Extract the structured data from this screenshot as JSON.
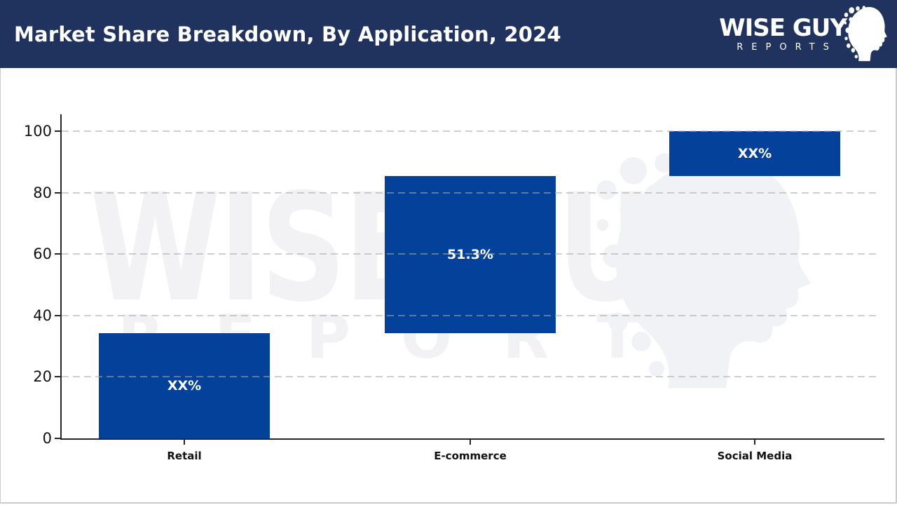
{
  "header": {
    "title": "Market Share Breakdown, By Application, 2024",
    "bg_color": "#20335f",
    "logo": {
      "line1": "WISE GUY",
      "line2": "REPORTS"
    }
  },
  "watermark": {
    "line1": "WISE GUY",
    "line2": "REPORTS"
  },
  "chart_data": {
    "type": "bar",
    "subtype": "waterfall-breakdown",
    "title": "Market Share Breakdown, By Application, 2024",
    "categories": [
      "Retail",
      "E-commerce",
      "Social Media"
    ],
    "values": [
      34.2,
      51.3,
      14.5
    ],
    "bar_starts": [
      0,
      34.2,
      85.5
    ],
    "bar_labels": [
      "XX%",
      "51.3%",
      "XX%"
    ],
    "xlabel": "",
    "ylabel": "",
    "ylim": [
      0,
      100
    ],
    "yticks": [
      0,
      20,
      40,
      60,
      80,
      100
    ],
    "grid": "horizontal-dashed-over-bars",
    "legend": "none",
    "bar_color": "#04419b",
    "label_color": "#ffffff",
    "axis_color": "#262626",
    "tick_label_color": "#111111"
  }
}
